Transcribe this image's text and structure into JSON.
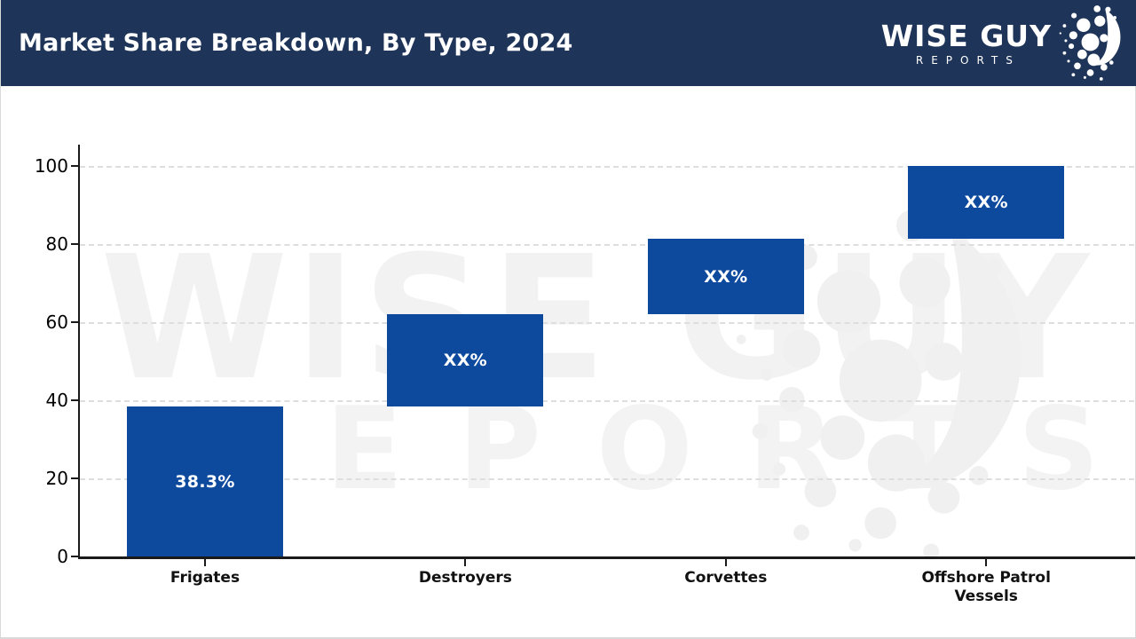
{
  "header": {
    "title": "Market Share Breakdown, By Type, 2024",
    "logo": {
      "line1": "WISE GUY",
      "line2": "REPORTS"
    }
  },
  "watermark": {
    "line1": "WISE GUY",
    "line2": "REPORTS"
  },
  "chart_data": {
    "type": "bar",
    "subtype": "waterfall",
    "title": "Market Share Breakdown, By Type, 2024",
    "categories": [
      "Frigates",
      "Destroyers",
      "Corvettes",
      "Offshore Patrol Vessels"
    ],
    "segments": [
      {
        "category": "Frigates",
        "label": "38.3%",
        "start": 0,
        "end": 38.3
      },
      {
        "category": "Destroyers",
        "label": "XX%",
        "start": 38.3,
        "end": 62.0
      },
      {
        "category": "Corvettes",
        "label": "XX%",
        "start": 62.0,
        "end": 81.4
      },
      {
        "category": "Offshore Patrol Vessels",
        "label": "XX%",
        "start": 81.4,
        "end": 100.0
      }
    ],
    "series": [
      {
        "name": "Market Share %",
        "values": [
          38.3,
          23.7,
          19.4,
          18.6
        ]
      }
    ],
    "yticks": [
      0,
      20,
      40,
      60,
      80,
      100
    ],
    "ylim": [
      0,
      105
    ],
    "xlabel": "",
    "ylabel": "",
    "grid": "horizontal-dashed",
    "legend": "none",
    "bar_color": "#0d4a9e",
    "bar_label_color": "#ffffff",
    "header_color": "#1f3459"
  }
}
